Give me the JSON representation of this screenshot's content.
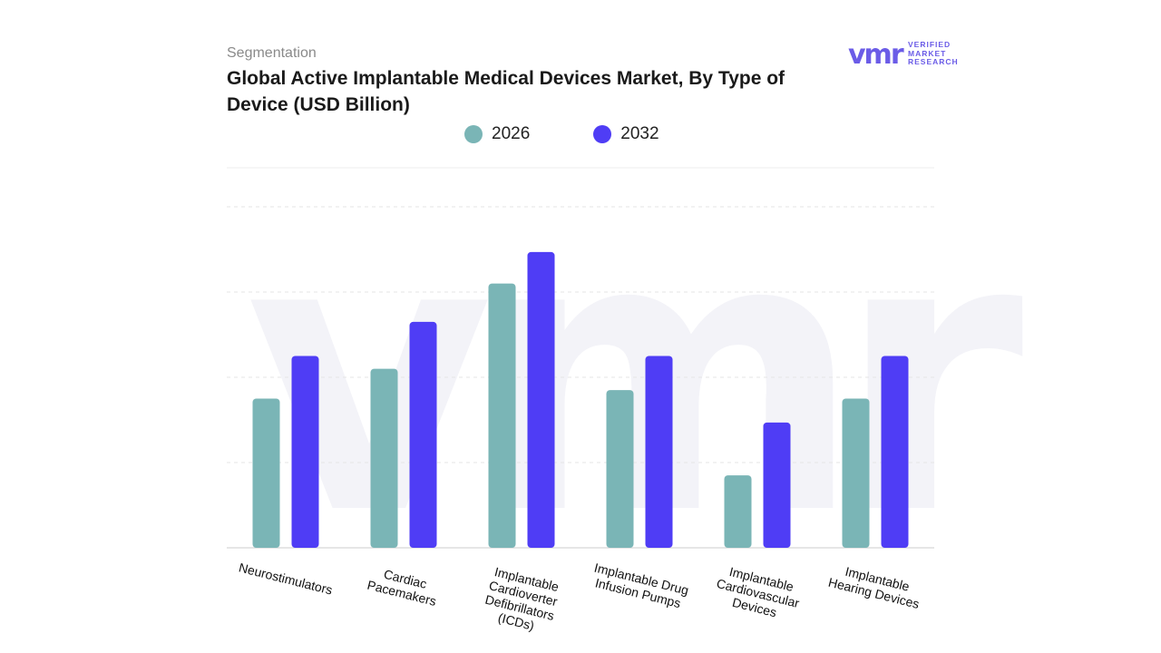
{
  "header": {
    "subtitle": "Segmentation",
    "title": "Global Active Implantable Medical Devices Market, By Type of Device (USD Billion)"
  },
  "logo": {
    "mark": "vmr",
    "line1": "VERIFIED",
    "line2": "MARKET",
    "line3": "RESEARCH",
    "color": "#6b5ce7"
  },
  "chart_data": {
    "type": "bar",
    "title": "Global Active Implantable Medical Devices Market, By Type of Device (USD Billion)",
    "categories": [
      "Neurostimulators",
      "Cardiac Pacemakers",
      "Implantable Cardioverter Defibrillators (ICDs)",
      "Implantable Drug Infusion Pumps",
      "Implantable Cardiovascular Devices",
      "Implantable Hearing Devices"
    ],
    "category_lines": [
      [
        "Neurostimulators"
      ],
      [
        "Cardiac",
        "Pacemakers"
      ],
      [
        "Implantable",
        "Cardioverter",
        "Defibrillators",
        "(ICDs)"
      ],
      [
        "Implantable Drug",
        "Infusion Pumps"
      ],
      [
        "Implantable",
        "Cardiovascular",
        "Devices"
      ],
      [
        "Implantable",
        "Hearing Devices"
      ]
    ],
    "series": [
      {
        "name": "2026",
        "color": "#7ab5b6",
        "values": [
          1.75,
          2.1,
          3.1,
          1.85,
          0.85,
          1.75
        ]
      },
      {
        "name": "2032",
        "color": "#4f3df5",
        "values": [
          2.25,
          2.65,
          3.47,
          2.25,
          1.47,
          2.25
        ]
      }
    ],
    "ylim": [
      0,
      4
    ],
    "yticks": [
      0,
      1,
      2,
      3,
      4
    ],
    "grid": true,
    "legend_position": "top-center",
    "xlabel": "",
    "ylabel": ""
  }
}
